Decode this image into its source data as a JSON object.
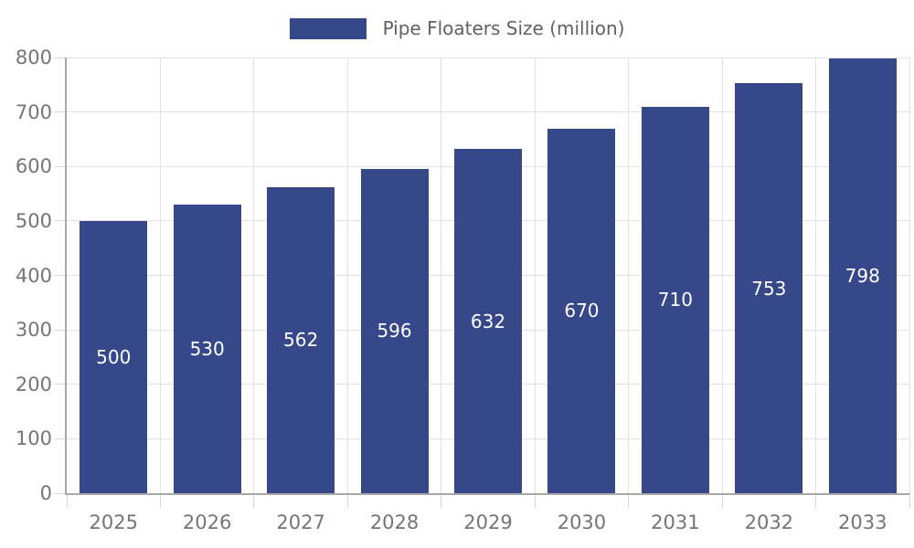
{
  "chart_data": {
    "type": "bar",
    "title": "Pipe Floaters Size (million)",
    "categories": [
      "2025",
      "2026",
      "2027",
      "2028",
      "2029",
      "2030",
      "2031",
      "2032",
      "2033"
    ],
    "values": [
      500,
      530,
      562,
      596,
      632,
      670,
      710,
      753,
      798
    ],
    "xlabel": "",
    "ylabel": "",
    "ylim": [
      0,
      800
    ],
    "ytick_step": 100,
    "yticks": [
      0,
      100,
      200,
      300,
      400,
      500,
      600,
      700,
      800
    ],
    "grid": true,
    "legend_position": "top",
    "colors": {
      "bar": "#36488A",
      "gridline": "#e2e2e2",
      "axis_line": "#a8a8a8",
      "tick_mark": "#d8d8d8",
      "tick_label": "#757575",
      "legend_text": "#616161",
      "bar_value_label": "#ffffff"
    }
  }
}
